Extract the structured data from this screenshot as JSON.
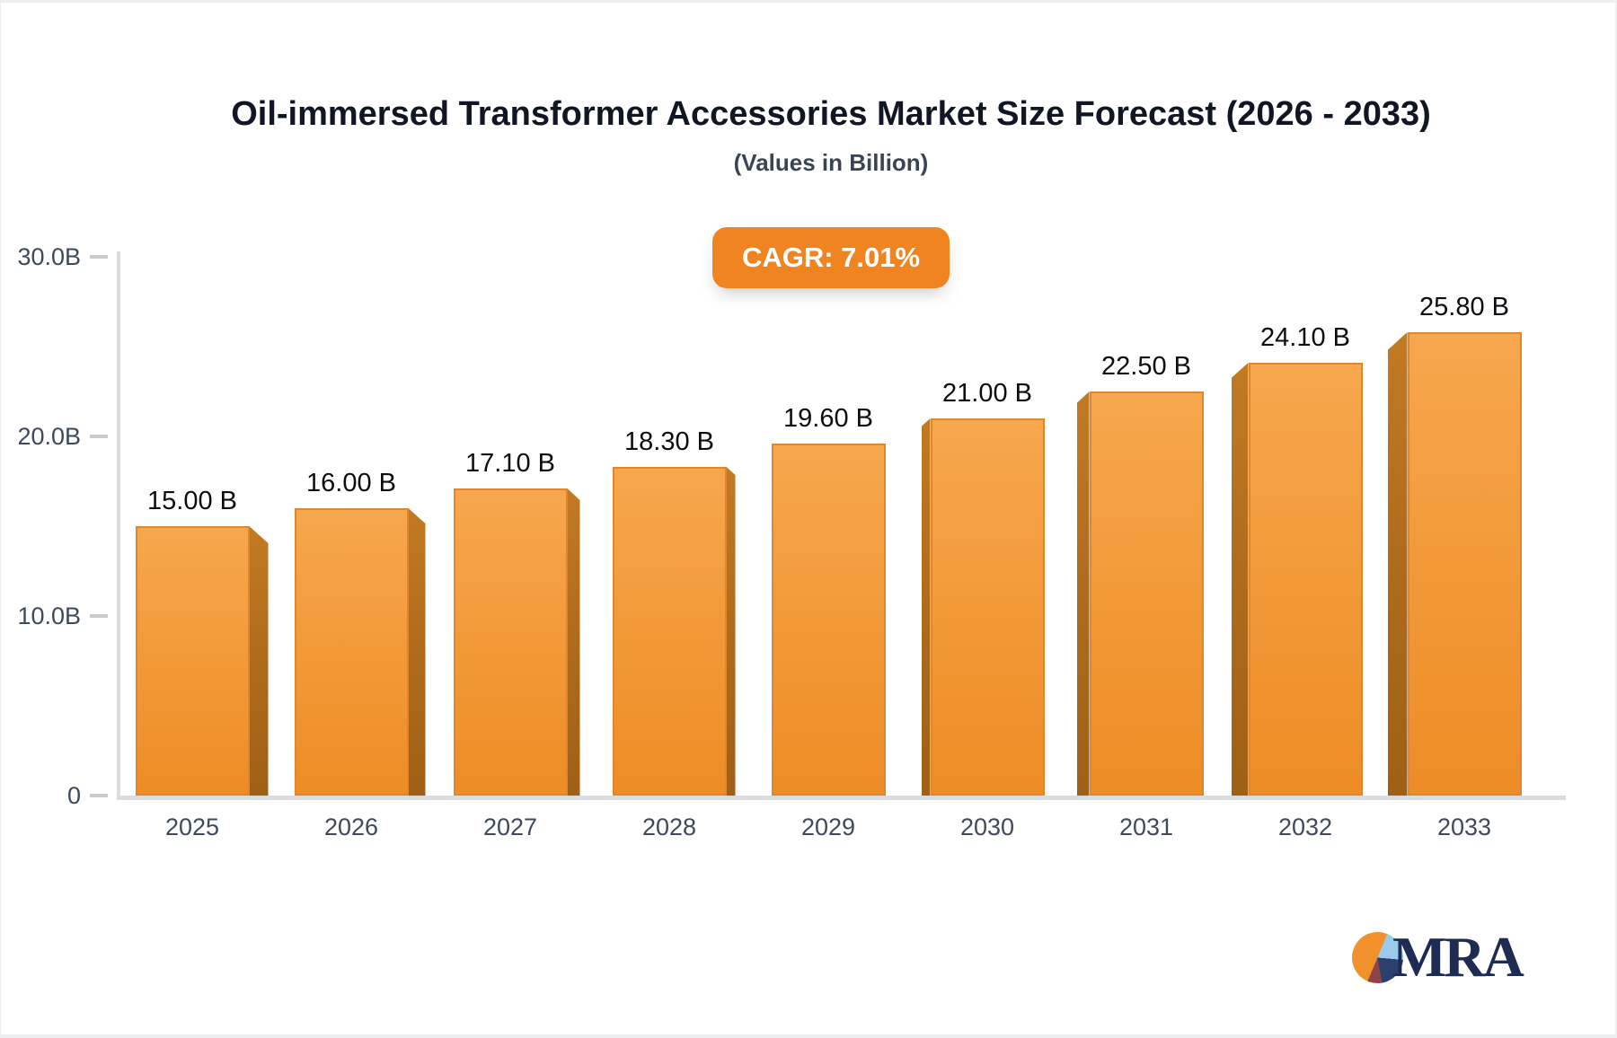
{
  "chart_data": {
    "type": "bar",
    "title": "Oil-immersed Transformer Accessories Market Size Forecast (2026 - 2033)",
    "subtitle": "(Values in Billion)",
    "badge_label": "CAGR: 7.01%",
    "categories": [
      "2025",
      "2026",
      "2027",
      "2028",
      "2029",
      "2030",
      "2031",
      "2032",
      "2033"
    ],
    "values": [
      15.0,
      16.0,
      17.1,
      18.3,
      19.6,
      21.0,
      22.5,
      24.1,
      25.8
    ],
    "bar_labels": [
      "15.00 B",
      "16.00 B",
      "17.10 B",
      "18.30 B",
      "19.60 B",
      "21.00 B",
      "22.50 B",
      "24.10 B",
      "25.80 B"
    ],
    "unit": "Billion",
    "xlabel": "",
    "ylabel": "",
    "ylim": [
      0,
      30
    ],
    "yticks": [
      {
        "label": "0",
        "value": 0
      },
      {
        "label": "10.0B",
        "value": 10
      },
      {
        "label": "20.0B",
        "value": 20
      },
      {
        "label": "30.0B",
        "value": 30
      }
    ],
    "grid": false,
    "legend_position": "none",
    "colors": {
      "bar_front_top": "#f7a74d",
      "bar_front_bottom": "#ee8c26",
      "bar_side": "#ad6a1b",
      "bar_border": "#e0862c",
      "badge_background": "#f08421",
      "badge_text": "#ffffff",
      "axis_line": "#d9dbdd",
      "tick_text": "#3e4a5b",
      "value_text": "#0b0d10",
      "title_text": "#101623"
    }
  },
  "logo": {
    "text": "MRA",
    "pie_icon_colors": [
      "#f0912b",
      "#9acaed",
      "#2b406f",
      "#8f4347"
    ]
  }
}
